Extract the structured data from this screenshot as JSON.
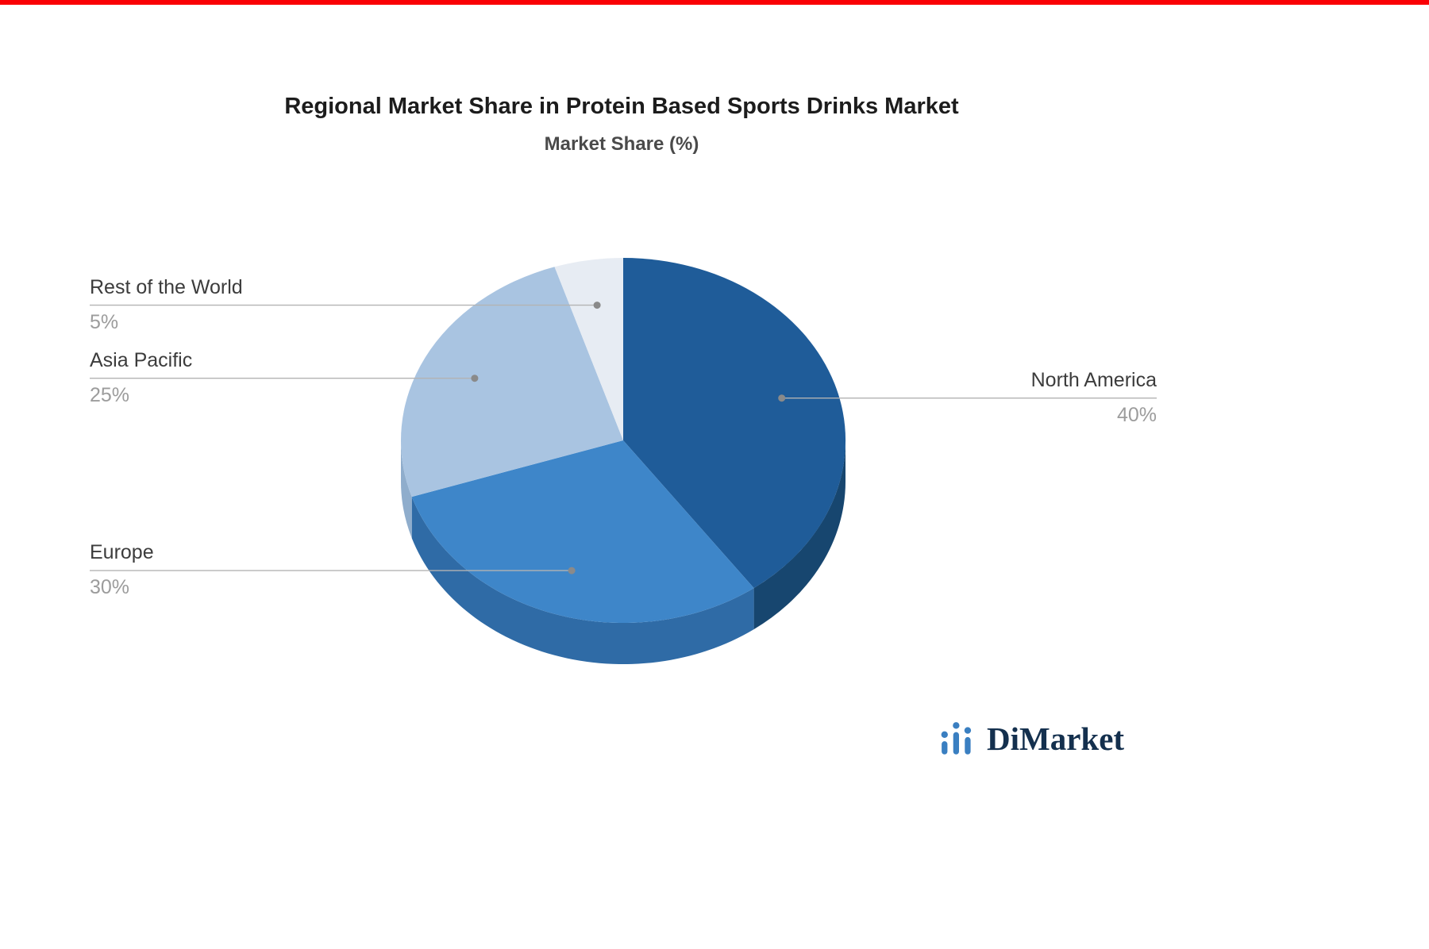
{
  "page": {
    "top_strip_color": "#fa0005",
    "background": "#ffffff"
  },
  "header": {
    "title": "Regional Market Share in Protein Based Sports Drinks Market",
    "subtitle": "Market Share (%)"
  },
  "chart_data": {
    "type": "pie",
    "style": "3d",
    "title": "Regional Market Share in Protein Based Sports Drinks Market",
    "subtitle": "Market Share (%)",
    "unit": "%",
    "direction": "clockwise",
    "start_angle_deg": 0,
    "legend_position": "callout-labels",
    "slices": [
      {
        "label": "North America",
        "value": 40,
        "percent_text": "40%",
        "color": "#1f5c99",
        "side_color": "#17466f"
      },
      {
        "label": "Europe",
        "value": 30,
        "percent_text": "30%",
        "color": "#3e86c9",
        "side_color": "#2f6ba6"
      },
      {
        "label": "Asia Pacific",
        "value": 25,
        "percent_text": "25%",
        "color": "#a9c4e1",
        "side_color": "#8fadcc"
      },
      {
        "label": "Rest of the World",
        "value": 5,
        "percent_text": "5%",
        "color": "#e7ecf3",
        "side_color": "#c6d2e0"
      }
    ],
    "labels_style": {
      "name_color": "#3c3c3c",
      "percent_color": "#9c9c9c",
      "leader_line_color": "#b3b3b3",
      "leader_dot_color": "#8a8a8a"
    }
  },
  "brand": {
    "name": "DiMarket",
    "text_color": "#14304e",
    "icon": "bar-chart-dots-icon",
    "icon_color": "#3a7fc1"
  }
}
